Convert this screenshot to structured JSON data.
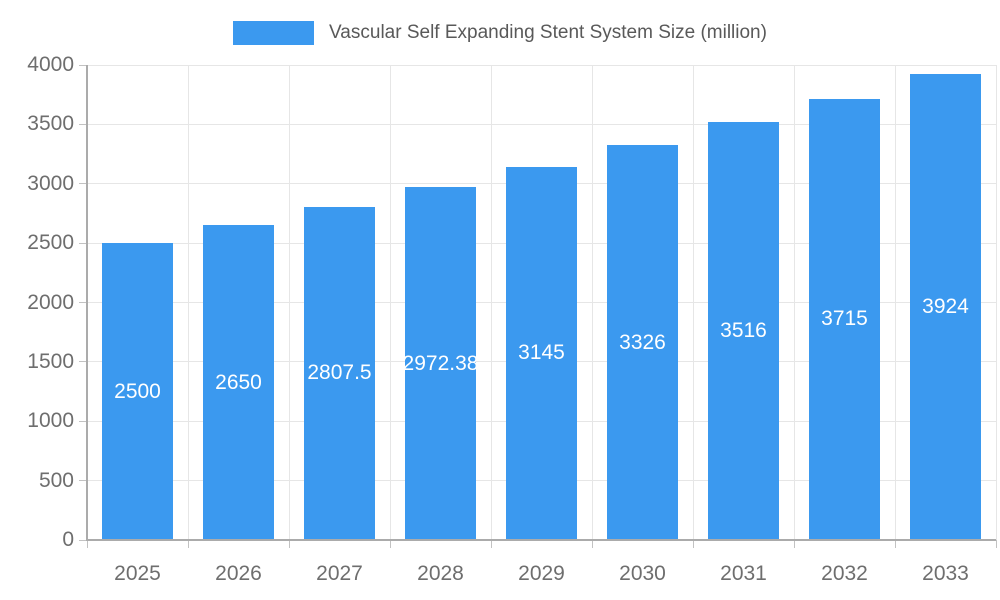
{
  "colors": {
    "bar": "#3B99EF",
    "grid": "#E6E6E6",
    "axis": "#ABABAB",
    "tick_mark": "#C2C2C2",
    "tick_text": "#6E6E6E",
    "bar_label_text": "#FFFFFF",
    "legend_text": "#595959",
    "background": "#FFFFFF"
  },
  "legend": {
    "label": "Vascular Self Expanding Stent System Size (million)",
    "swatch": "bar-series-swatch"
  },
  "chart_data": {
    "type": "bar",
    "title": "",
    "legend_label": "Vascular Self Expanding Stent System Size (million)",
    "legend_position": "top",
    "grid": true,
    "categories": [
      "2025",
      "2026",
      "2027",
      "2028",
      "2029",
      "2030",
      "2031",
      "2032",
      "2033"
    ],
    "series": [
      {
        "name": "Vascular Self Expanding Stent System Size (million)",
        "values": [
          2500,
          2650,
          2807.5,
          2972.38,
          3145,
          3326,
          3516,
          3715,
          3924
        ],
        "value_labels": [
          "2500",
          "2650",
          "2807.5",
          "2972.38",
          "3145",
          "3326",
          "3516",
          "3715",
          "3924"
        ]
      }
    ],
    "xlabel": "",
    "ylabel": "",
    "ylim": [
      0,
      4000
    ],
    "yticks": [
      0,
      500,
      1000,
      1500,
      2000,
      2500,
      3000,
      3500,
      4000
    ],
    "ytick_labels": [
      "0",
      "500",
      "1000",
      "1500",
      "2000",
      "2500",
      "3000",
      "3500",
      "4000"
    ]
  }
}
